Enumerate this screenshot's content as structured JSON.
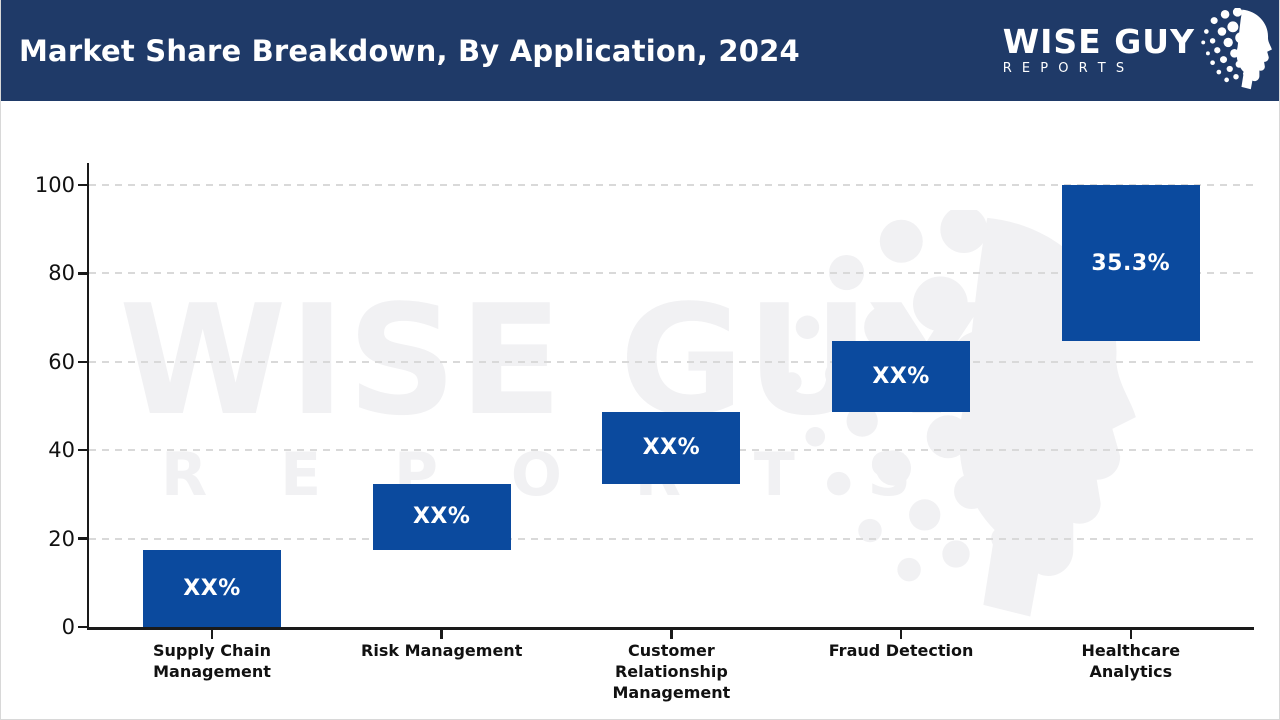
{
  "header": {
    "title": "Market Share Breakdown, By Application, 2024",
    "brand": {
      "name": "WISE GUY",
      "sub": "R E P O R T S"
    }
  },
  "watermark": {
    "line1": "WISE GUY",
    "line2": "R E P O R T S"
  },
  "colors": {
    "header_bg": "#1f3a68",
    "title_text": "#ffffff",
    "bar": "#0b4a9e",
    "bar_label": "#ffffff",
    "axis": "#1a1a1a",
    "label_text": "#111111",
    "gridline": "#d9d9d9",
    "watermark": "#f1f1f3",
    "page_border": "#d8d8d8"
  },
  "chart_data": {
    "type": "bar",
    "subtype": "waterfall",
    "title": "Market Share Breakdown, By Application, 2024",
    "categories": [
      "Supply Chain\nManagement",
      "Risk Management",
      "Customer\nRelationship\nManagement",
      "Fraud Detection",
      "Healthcare\nAnalytics"
    ],
    "segments": [
      {
        "category": "Supply Chain Management",
        "start": 0,
        "end": 17.4,
        "label": "XX%"
      },
      {
        "category": "Risk Management",
        "start": 17.4,
        "end": 32.4,
        "label": "XX%"
      },
      {
        "category": "Customer Relationship Management",
        "start": 32.4,
        "end": 48.6,
        "label": "XX%"
      },
      {
        "category": "Fraud Detection",
        "start": 48.6,
        "end": 64.7,
        "label": "XX%"
      },
      {
        "category": "Healthcare Analytics",
        "start": 64.7,
        "end": 100,
        "label": "35.3%"
      }
    ],
    "yticks": [
      0,
      20,
      40,
      60,
      80,
      100
    ],
    "ylim": [
      0,
      100
    ],
    "grid": "dashed-horizontal",
    "legend": null
  }
}
